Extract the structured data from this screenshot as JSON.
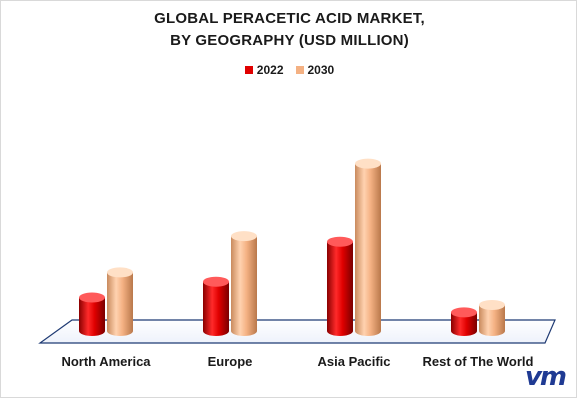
{
  "chart_data": {
    "type": "bar",
    "title": "GLOBAL PERACETIC ACID MARKET,",
    "subtitle": "BY GEOGRAPHY (USD MILLION)",
    "categories": [
      "North America",
      "Europe",
      "Asia Pacific",
      "Rest of The World"
    ],
    "series": [
      {
        "name": "2022",
        "values": [
          36,
          53,
          96,
          20
        ],
        "color": "#e00000"
      },
      {
        "name": "2030",
        "values": [
          63,
          102,
          180,
          28
        ],
        "color": "#f4b183"
      }
    ],
    "ylim": [
      0,
      200
    ],
    "grid": false,
    "legend_position": "top-center",
    "style": "3d-cylinder"
  },
  "logo_text": "vm"
}
